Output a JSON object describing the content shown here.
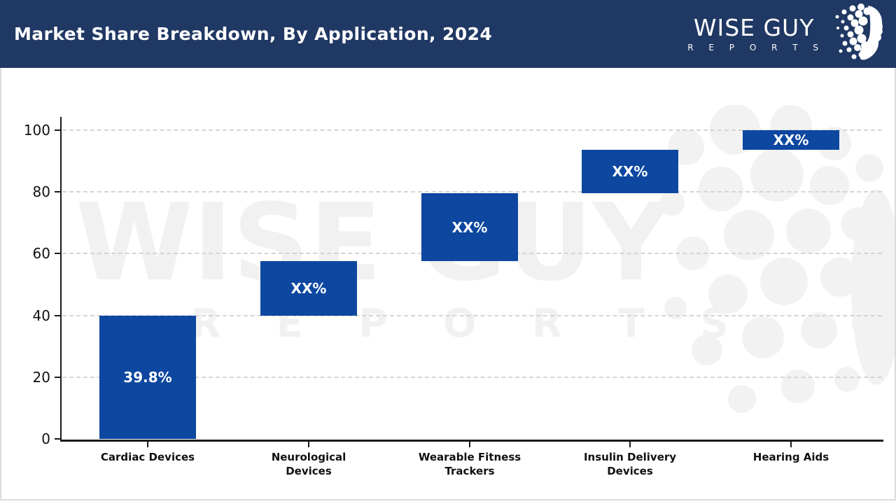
{
  "header": {
    "title": "Market Share Breakdown, By Application, 2024",
    "logo": {
      "name": "WISE GUY",
      "sub": "R E P O R T S",
      "face_icon": "dotted-head-profile"
    }
  },
  "watermark": {
    "line1": "WISE GUY",
    "line2": "R E P O R T S"
  },
  "chart_data": {
    "type": "bar",
    "subtype": "waterfall",
    "title": "Market Share Breakdown, By Application, 2024",
    "xlabel": "",
    "ylabel": "",
    "ylim": [
      0,
      105
    ],
    "y_ticks": [
      0,
      20,
      40,
      60,
      80,
      100
    ],
    "grid": "horizontal-dashed",
    "legend": "none",
    "bar_color": "#0d47a0",
    "bar_label_color": "#ffffff",
    "categories": [
      "Cardiac Devices",
      "Neurological Devices",
      "Wearable Fitness Trackers",
      "Insulin Delivery Devices",
      "Hearing Aids"
    ],
    "category_label_lines": [
      [
        "Cardiac Devices"
      ],
      [
        "Neurological",
        "Devices"
      ],
      [
        "Wearable Fitness",
        "Trackers"
      ],
      [
        "Insulin Delivery",
        "Devices"
      ],
      [
        "Hearing Aids"
      ]
    ],
    "segments": [
      {
        "category": "Cardiac Devices",
        "start": 0,
        "end": 39.8,
        "label": "39.8%"
      },
      {
        "category": "Neurological Devices",
        "start": 39.8,
        "end": 57.5,
        "label": "XX%"
      },
      {
        "category": "Wearable Fitness Trackers",
        "start": 57.5,
        "end": 79.6,
        "label": "XX%"
      },
      {
        "category": "Insulin Delivery Devices",
        "start": 79.6,
        "end": 93.7,
        "label": "XX%"
      },
      {
        "category": "Hearing Aids",
        "start": 93.7,
        "end": 100,
        "label": "XX%"
      }
    ]
  }
}
